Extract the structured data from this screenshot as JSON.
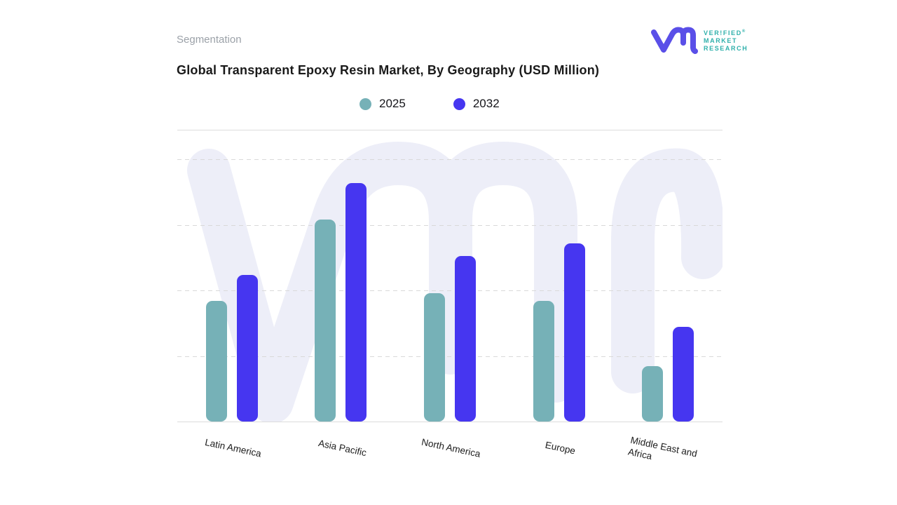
{
  "header": {
    "eyebrow": "Segmentation",
    "title": "Global Transparent Epoxy Resin Market, By Geography (USD Million)"
  },
  "legend": {
    "items": [
      {
        "label": "2025",
        "color": "#76B1B7"
      },
      {
        "label": "2032",
        "color": "#4636F0"
      }
    ]
  },
  "logo": {
    "line1": "VER!FIED",
    "registered_mark": "®",
    "line2": "MARKET",
    "line3": "RESEARCH"
  },
  "chart_data": {
    "type": "bar",
    "title": "Global Transparent Epoxy Resin Market, By Geography (USD Million)",
    "categories": [
      "Latin America",
      "Asia Pacific",
      "North America",
      "Europe",
      "Middle East and Africa"
    ],
    "series": [
      {
        "name": "2025",
        "color": "#76B1B7",
        "values": [
          46,
          77,
          49,
          46,
          21
        ]
      },
      {
        "name": "2032",
        "color": "#4636F0",
        "values": [
          56,
          91,
          63,
          68,
          36
        ]
      }
    ],
    "xlabel": "",
    "ylabel": "",
    "ylim": [
      0,
      100
    ],
    "units": "relative (no value axis shown)",
    "grid": {
      "visible": true,
      "style": "dashed",
      "step": 25,
      "value_labels_visible": false
    },
    "legend_position": "top-center",
    "bar_corner_radius": 9
  },
  "style": {
    "background": "#FFFFFF",
    "title_color": "#1A1A1A",
    "eyebrow_color": "#9BA1A8",
    "label_color": "#1C1C1C",
    "gridline_color": "#D9D9D9",
    "baseline_color": "#DCDCDC",
    "divider_color": "#DDDDDD",
    "watermark_color": "#EDEEF8",
    "logo_mark_color": "#5A4FE8",
    "logo_text_color": "#2FB0AB"
  }
}
